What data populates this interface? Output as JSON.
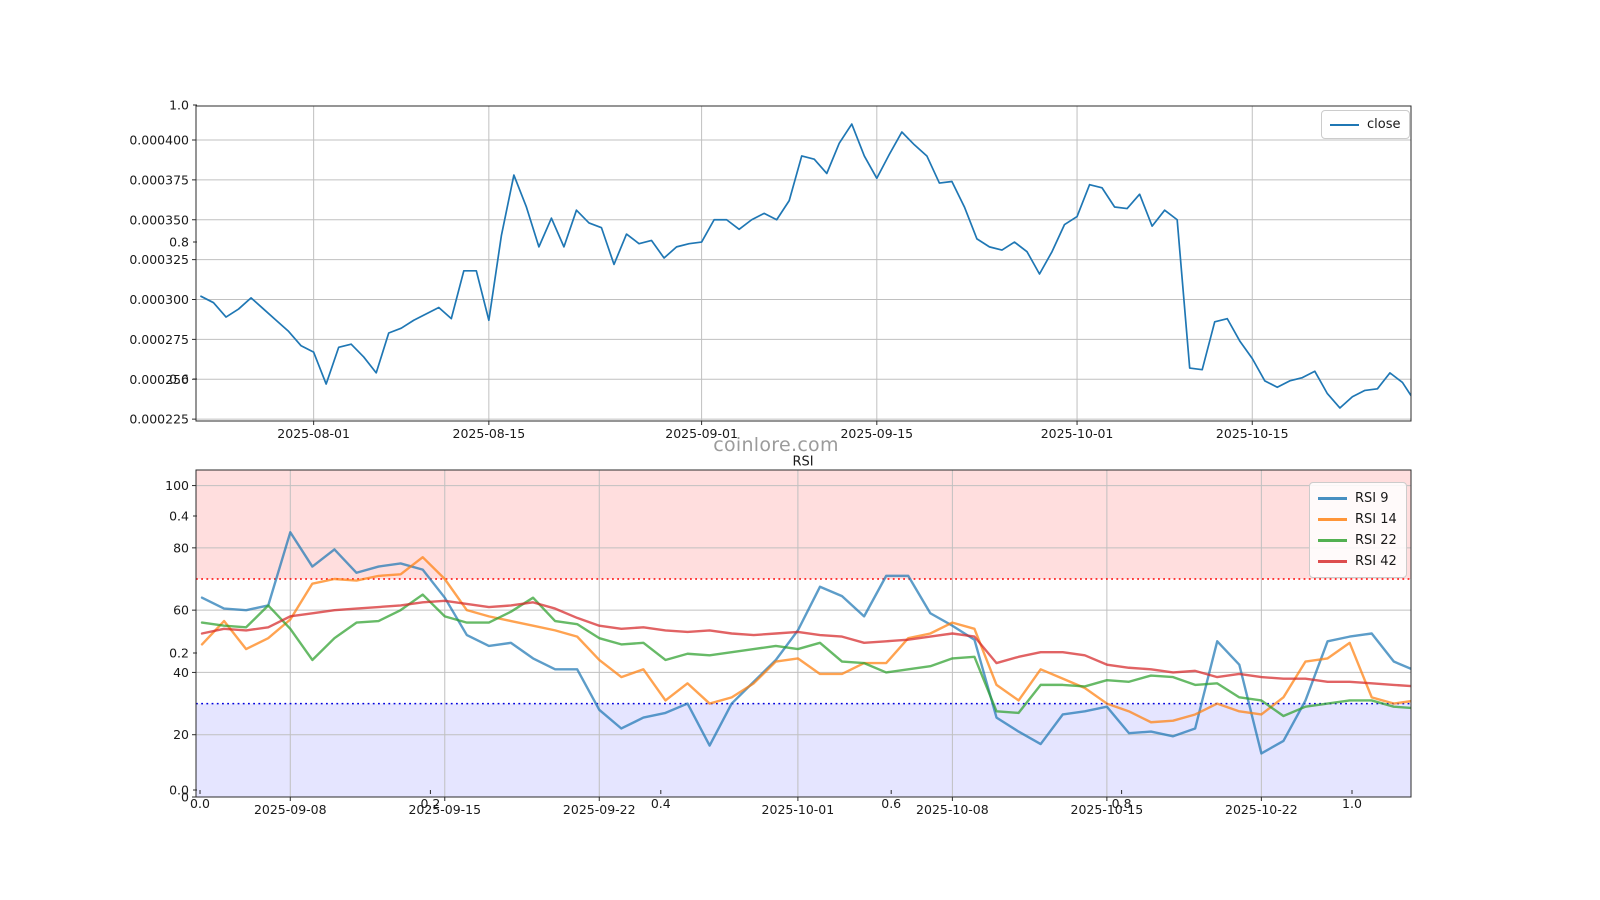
{
  "watermark": "coinlore.com",
  "colors": {
    "close_line": "#1f77b4",
    "rsi_lines": [
      "#1f77b4",
      "#ff7f0e",
      "#2ca02c",
      "#d62728"
    ],
    "rsi_line_alpha": 0.72,
    "overbought_dotted": "#ff0000",
    "oversold_dotted": "#0000dd",
    "overbought_band": "rgba(255,0,0,0.13)",
    "oversold_band": "rgba(0,0,255,0.10)",
    "grid": "#c0c0c0",
    "spine": "#2b2b2b",
    "tick_text": "#1a1a1a",
    "watermark_text": "#8a8a8a"
  },
  "chart_data": [
    {
      "id": "price",
      "type": "line",
      "title": "",
      "legend": [
        "close"
      ],
      "legend_position": "upper right",
      "grid": true,
      "x_start_date": "2025-07-23",
      "x_end_date": "2025-10-28",
      "x_unit": "day",
      "value_scale": 1e-06,
      "ylim_scaled": [
        224,
        421
      ],
      "yticks": {
        "labels": [
          "0.000400",
          "0.000375",
          "0.000350",
          "0.000325",
          "0.000300",
          "0.000275",
          "0.000250",
          "0.000225"
        ],
        "values_scaled": [
          400,
          375,
          350,
          325,
          300,
          275,
          250,
          225
        ]
      },
      "xticks": {
        "labels": [
          "2025-08-01",
          "2025-08-15",
          "2025-09-01",
          "2025-09-15",
          "2025-10-01",
          "2025-10-15"
        ],
        "indices": [
          9,
          23,
          40,
          54,
          70,
          84
        ]
      },
      "values_scaled": [
        302,
        298,
        289,
        294,
        301,
        294,
        287,
        280,
        271,
        267,
        247,
        270,
        272,
        264,
        254,
        279,
        282,
        287,
        291,
        295,
        288,
        318,
        318,
        287,
        340,
        378,
        358,
        333,
        351,
        333,
        356,
        348,
        345,
        322,
        341,
        335,
        337,
        326,
        333,
        335,
        336,
        350,
        350,
        344,
        350,
        354,
        350,
        362,
        390,
        388,
        379,
        398,
        410,
        390,
        376,
        391,
        405,
        397,
        390,
        373,
        374,
        358,
        338,
        333,
        331,
        336,
        330,
        316,
        330,
        347,
        352,
        372,
        370,
        358,
        357,
        366,
        346,
        356,
        350,
        257,
        256,
        286,
        288,
        274,
        263,
        249,
        245,
        249,
        251,
        255,
        241,
        232,
        239,
        243,
        244,
        254,
        248,
        236
      ]
    },
    {
      "id": "rsi",
      "type": "line",
      "title": "RSI",
      "legend": [
        "RSI 9",
        "RSI 14",
        "RSI 22",
        "RSI 42"
      ],
      "legend_position": "upper right",
      "grid": true,
      "x_start_date": "2025-09-04",
      "x_end_date": "2025-10-29",
      "x_unit": "day",
      "ylim": [
        0,
        105
      ],
      "overbought_level": 70,
      "oversold_level": 30,
      "yticks": {
        "labels": [
          "100",
          "80",
          "60",
          "40",
          "20",
          "0"
        ],
        "values": [
          100,
          80,
          60,
          40,
          20,
          0
        ]
      },
      "xticks": {
        "labels": [
          "2025-09-08",
          "2025-09-15",
          "2025-09-22",
          "2025-10-01",
          "2025-10-08",
          "2025-10-15",
          "2025-10-22"
        ],
        "indices": [
          4,
          11,
          18,
          27,
          34,
          41,
          48
        ]
      },
      "series": [
        {
          "name": "RSI 9",
          "values": [
            64,
            60.5,
            60,
            61.5,
            85,
            74,
            79.5,
            72,
            74,
            75,
            73,
            64,
            52,
            48.5,
            49.5,
            44.5,
            41,
            41,
            28,
            22,
            25.5,
            27,
            30,
            16.5,
            30,
            37,
            44,
            53.5,
            67.5,
            64.5,
            58,
            71,
            71,
            59,
            55,
            50.5,
            25.5,
            21,
            17,
            26.5,
            27.5,
            29,
            20.5,
            21,
            19.5,
            22,
            50,
            42.5,
            14,
            18,
            31,
            50,
            51.5,
            52.5,
            43.5,
            40.5
          ]
        },
        {
          "name": "RSI 14",
          "values": [
            49,
            56.5,
            47.5,
            51,
            57,
            68.5,
            70,
            69.5,
            71,
            71.5,
            77,
            70,
            60,
            58,
            56.5,
            55,
            53.5,
            51.5,
            44,
            38.5,
            41,
            31,
            36.5,
            30,
            32,
            36.5,
            43.5,
            44.5,
            39.5,
            39.5,
            43,
            43,
            51,
            52.5,
            56,
            54,
            36,
            31,
            41,
            38,
            35,
            30,
            27.5,
            24,
            24.5,
            26.5,
            30,
            27.5,
            26.5,
            32,
            43.5,
            44.5,
            49.5,
            32,
            30,
            31
          ]
        },
        {
          "name": "RSI 22",
          "values": [
            56,
            55,
            54.5,
            61.5,
            54,
            44,
            51,
            56,
            56.5,
            60,
            65,
            58,
            56,
            56,
            59.5,
            64,
            56.5,
            55.5,
            51,
            49,
            49.5,
            44,
            46,
            45.5,
            46.5,
            47.5,
            48.5,
            47.5,
            49.5,
            43.5,
            43,
            40,
            41,
            42,
            44.5,
            45,
            27.5,
            27,
            36,
            36,
            35.5,
            37.5,
            37,
            39,
            38.5,
            36,
            36.5,
            32,
            31,
            26,
            29,
            30,
            31,
            31,
            29,
            28.5
          ]
        },
        {
          "name": "RSI 42",
          "values": [
            52.5,
            54,
            53.5,
            54.5,
            58,
            59,
            60,
            60.5,
            61,
            61.5,
            62.5,
            63,
            62,
            61,
            61.5,
            62.5,
            60.5,
            57.5,
            55,
            54,
            54.5,
            53.5,
            53,
            53.5,
            52.5,
            52,
            52.5,
            53,
            52,
            51.5,
            49.5,
            50,
            50.5,
            51.5,
            52.5,
            51.5,
            43,
            45,
            46.5,
            46.5,
            45.5,
            42.5,
            41.5,
            41,
            40,
            40.5,
            38.5,
            39.5,
            38.5,
            38,
            38,
            37,
            37,
            36.5,
            36,
            35.5
          ]
        }
      ]
    }
  ],
  "overlay_axis": {
    "y_labels": [
      "1.0",
      "0.8",
      "0.6",
      "0.4",
      "0.2",
      "0.0"
    ],
    "x_labels": [
      "0.0",
      "0.2",
      "0.4",
      "0.6",
      "0.8",
      "1.0"
    ]
  }
}
